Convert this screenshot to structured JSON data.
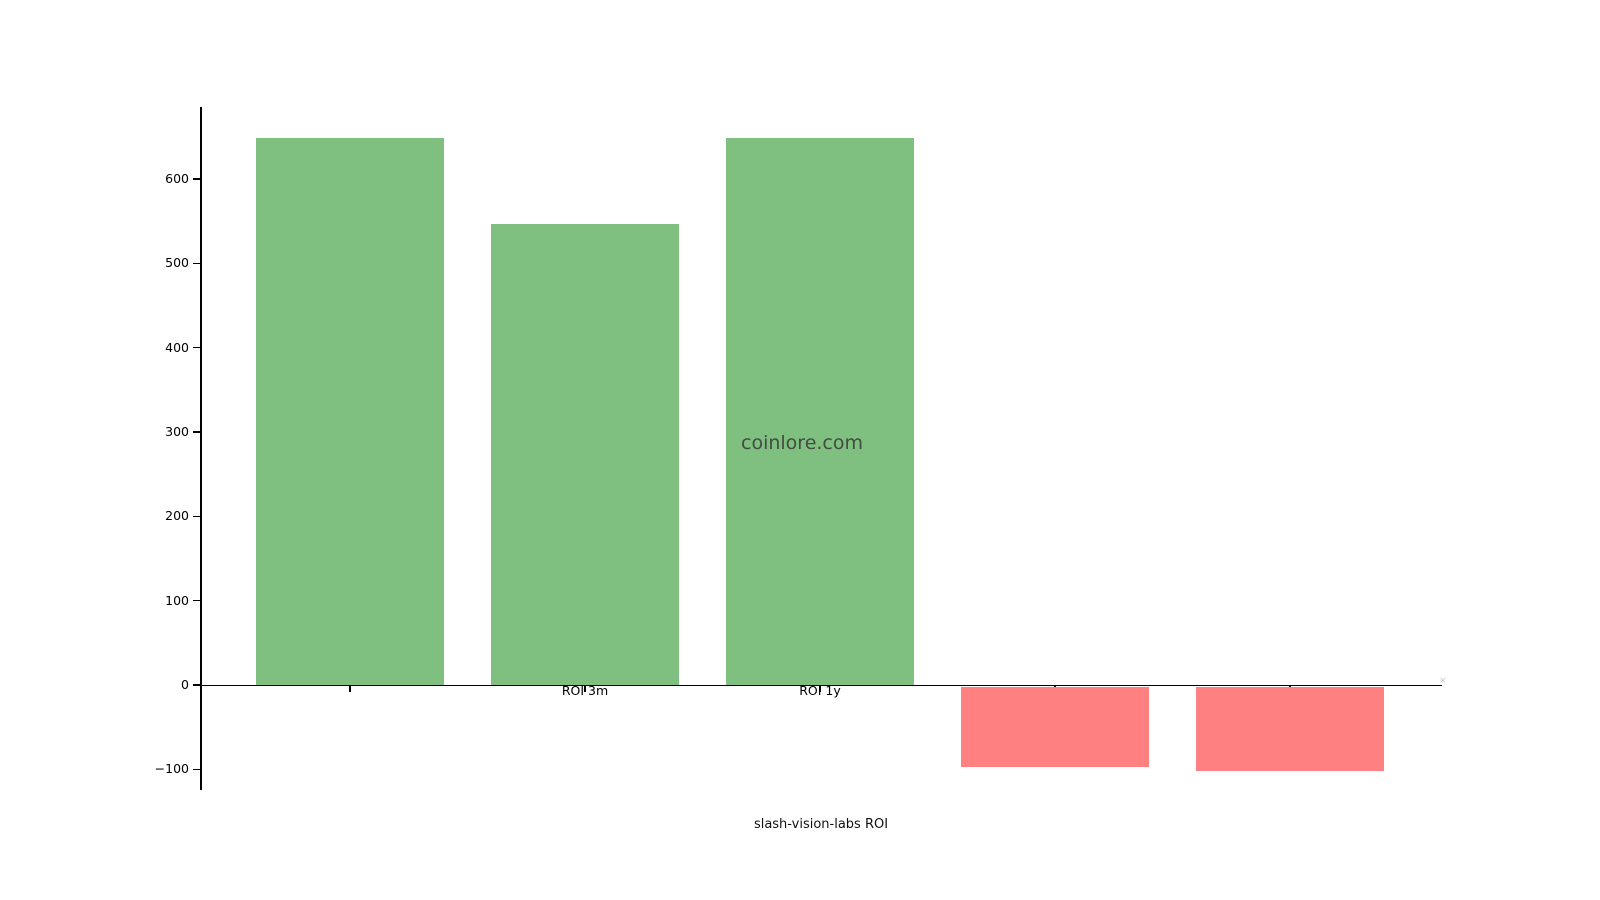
{
  "watermark": {
    "text": "coinlore.com"
  },
  "chart_data": {
    "type": "bar",
    "title": "",
    "xlabel": "slash-vision-labs ROI",
    "ylabel": "",
    "categories": [
      "",
      "ROI 3m",
      "ROI 1y",
      "",
      ""
    ],
    "values": [
      648,
      547,
      648,
      -95,
      -100
    ],
    "yticks": [
      600,
      500,
      400,
      300,
      200,
      100,
      0,
      -100
    ],
    "ylim": [
      -124,
      686
    ],
    "xtick_count": 5,
    "grid": false,
    "legend": false,
    "bar_colors": [
      "#7fbf7f",
      "#7fbf7f",
      "#7fbf7f",
      "#ff8080",
      "#ff8080"
    ],
    "colors": {
      "positive_bar": "#7fbf7f",
      "negative_bar": "#ff8080",
      "axis": "#000000",
      "tick_text": "#000000",
      "watermark_text": "#373737"
    }
  }
}
